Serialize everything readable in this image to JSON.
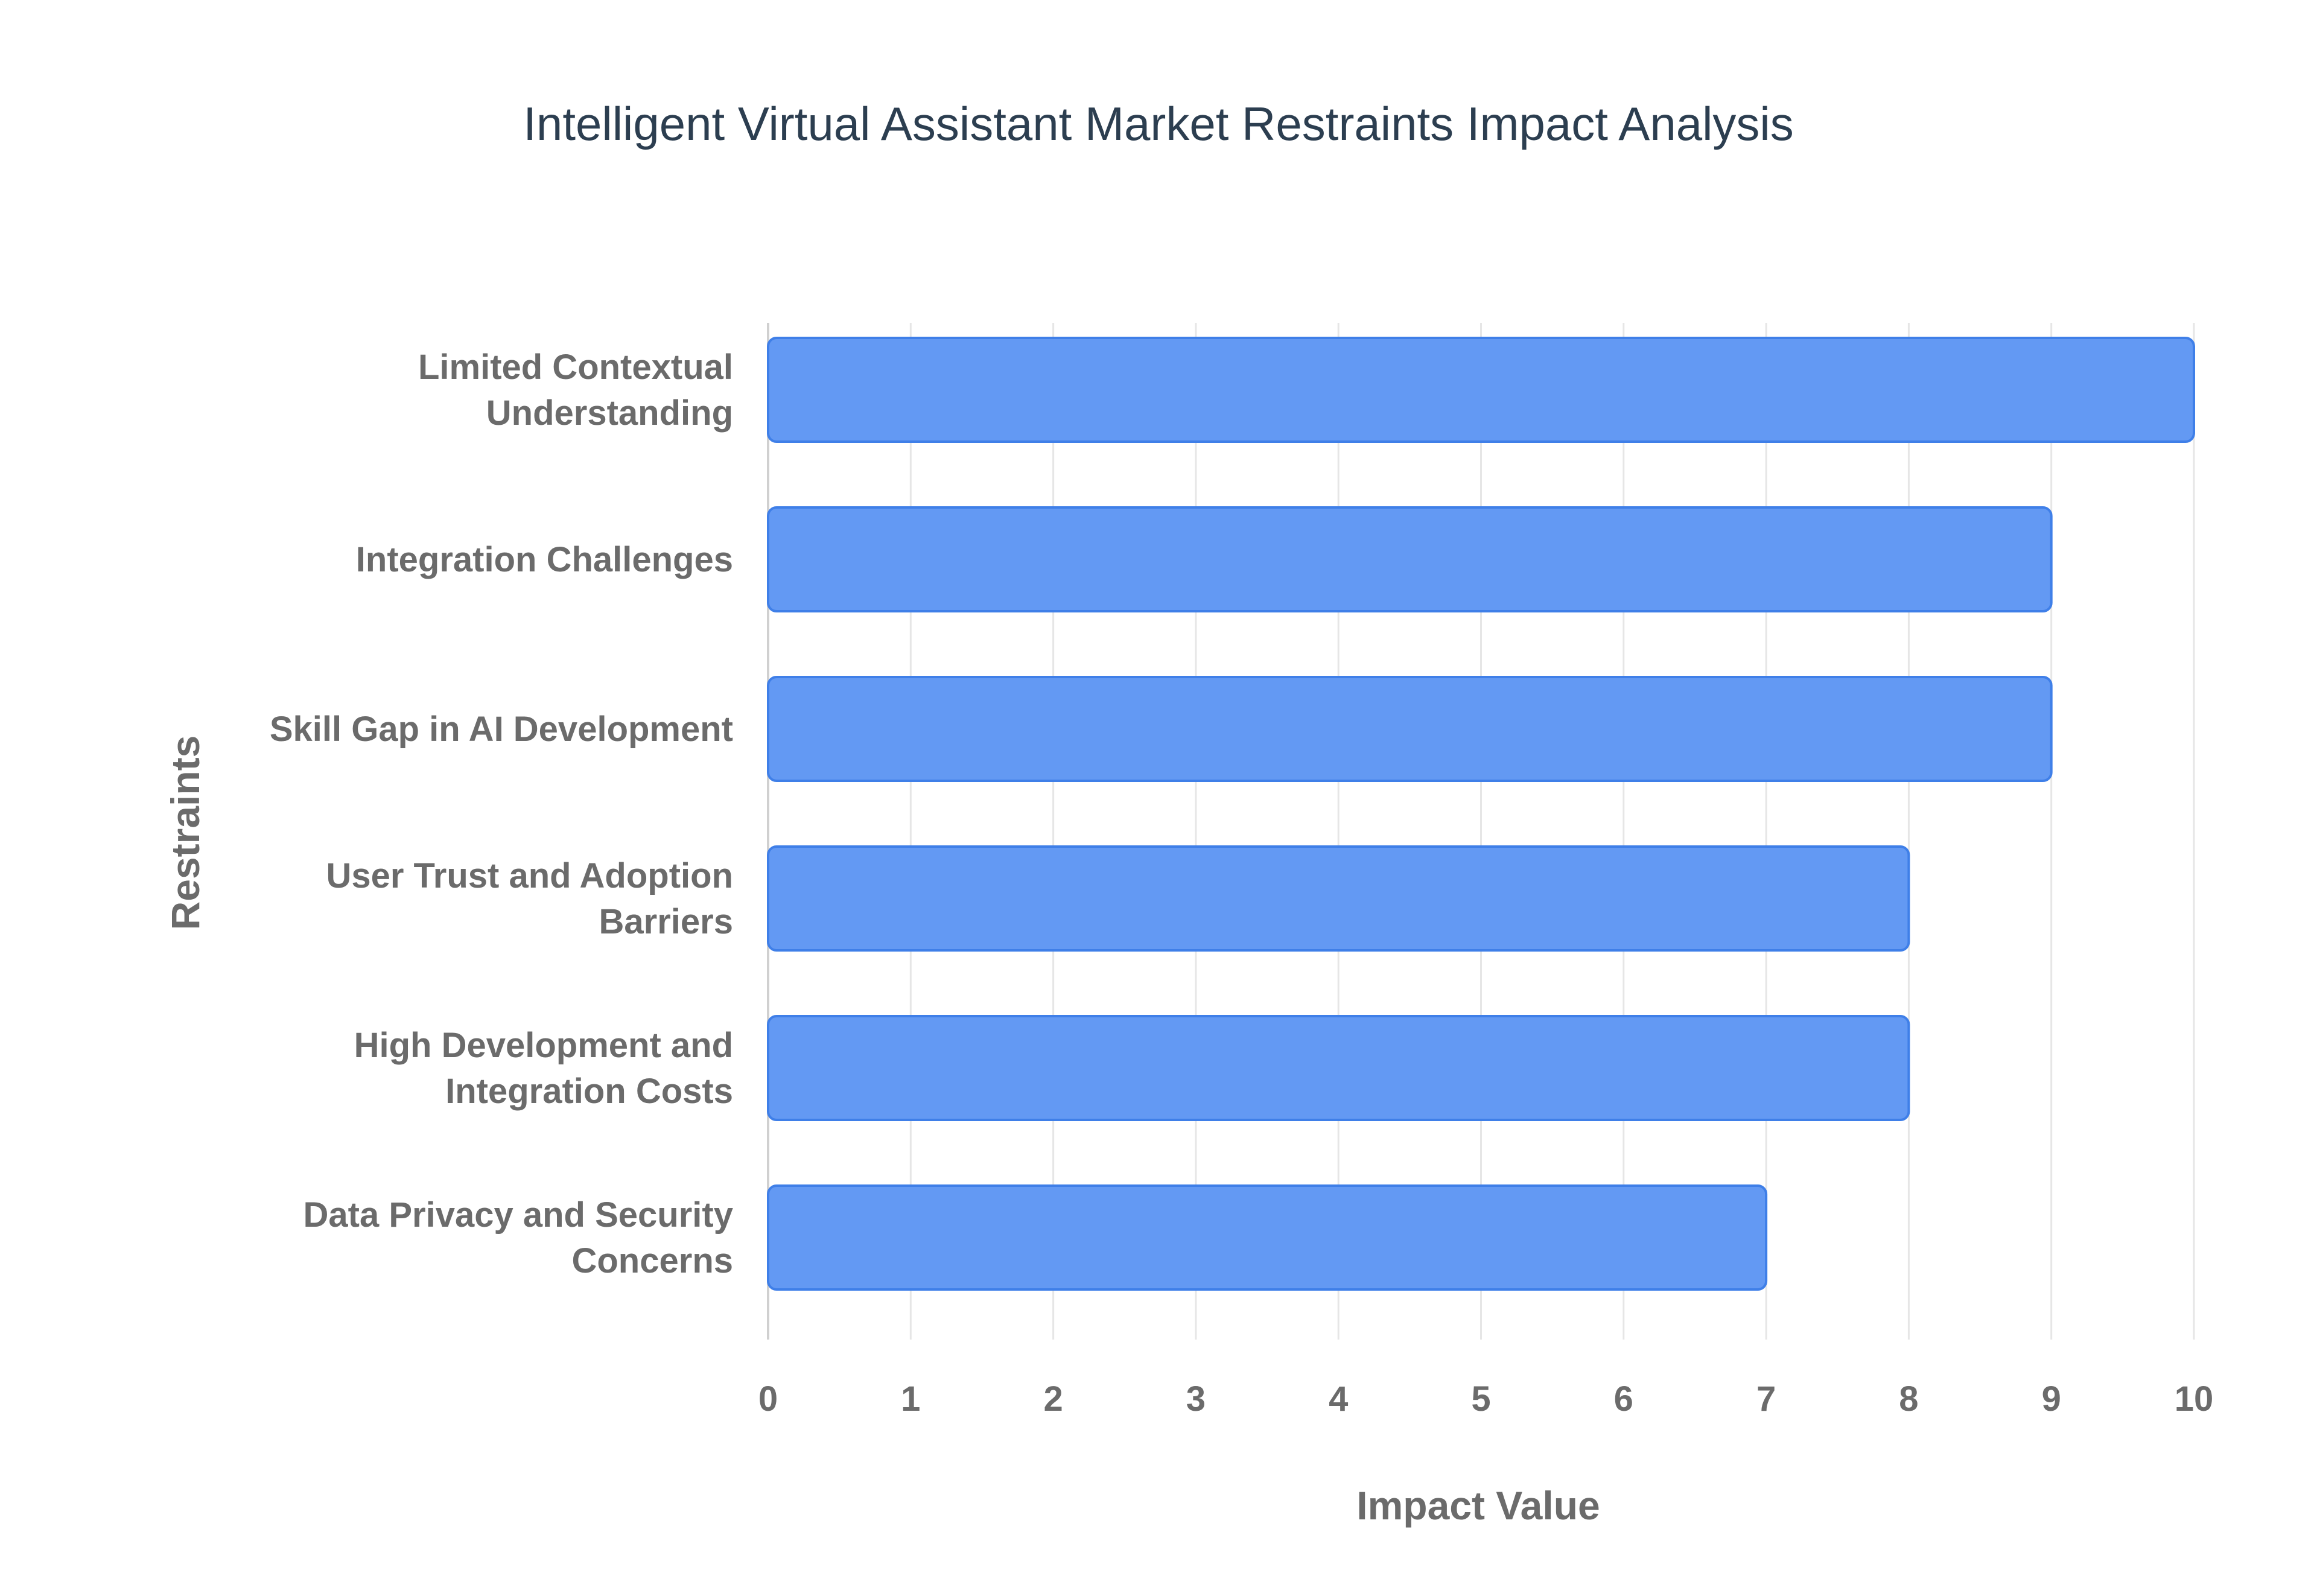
{
  "chart_data": {
    "type": "bar",
    "orientation": "horizontal",
    "title": "Intelligent Virtual Assistant Market Restraints Impact Analysis",
    "xlabel": "Impact Value",
    "ylabel": "Restraints",
    "categories": [
      [
        "Limited Contextual",
        "Understanding"
      ],
      [
        "Integration Challenges"
      ],
      [
        "Skill Gap in AI Development"
      ],
      [
        "User Trust and Adoption",
        "Barriers"
      ],
      [
        "High Development and",
        "Integration Costs"
      ],
      [
        "Data Privacy and Security",
        "Concerns"
      ]
    ],
    "values": [
      10,
      9,
      9,
      8,
      8,
      7
    ],
    "xlim": [
      0,
      10
    ],
    "xticks": [
      "0",
      "1",
      "2",
      "3",
      "4",
      "5",
      "6",
      "7",
      "8",
      "9",
      "10"
    ],
    "grid": true,
    "legend": "none"
  },
  "colors": {
    "bar_fill": "#6399f3",
    "bar_stroke": "#3f7fe8",
    "title": "#2c3e50",
    "label": "#6b6b6b",
    "grid": "#e6e6e6"
  }
}
